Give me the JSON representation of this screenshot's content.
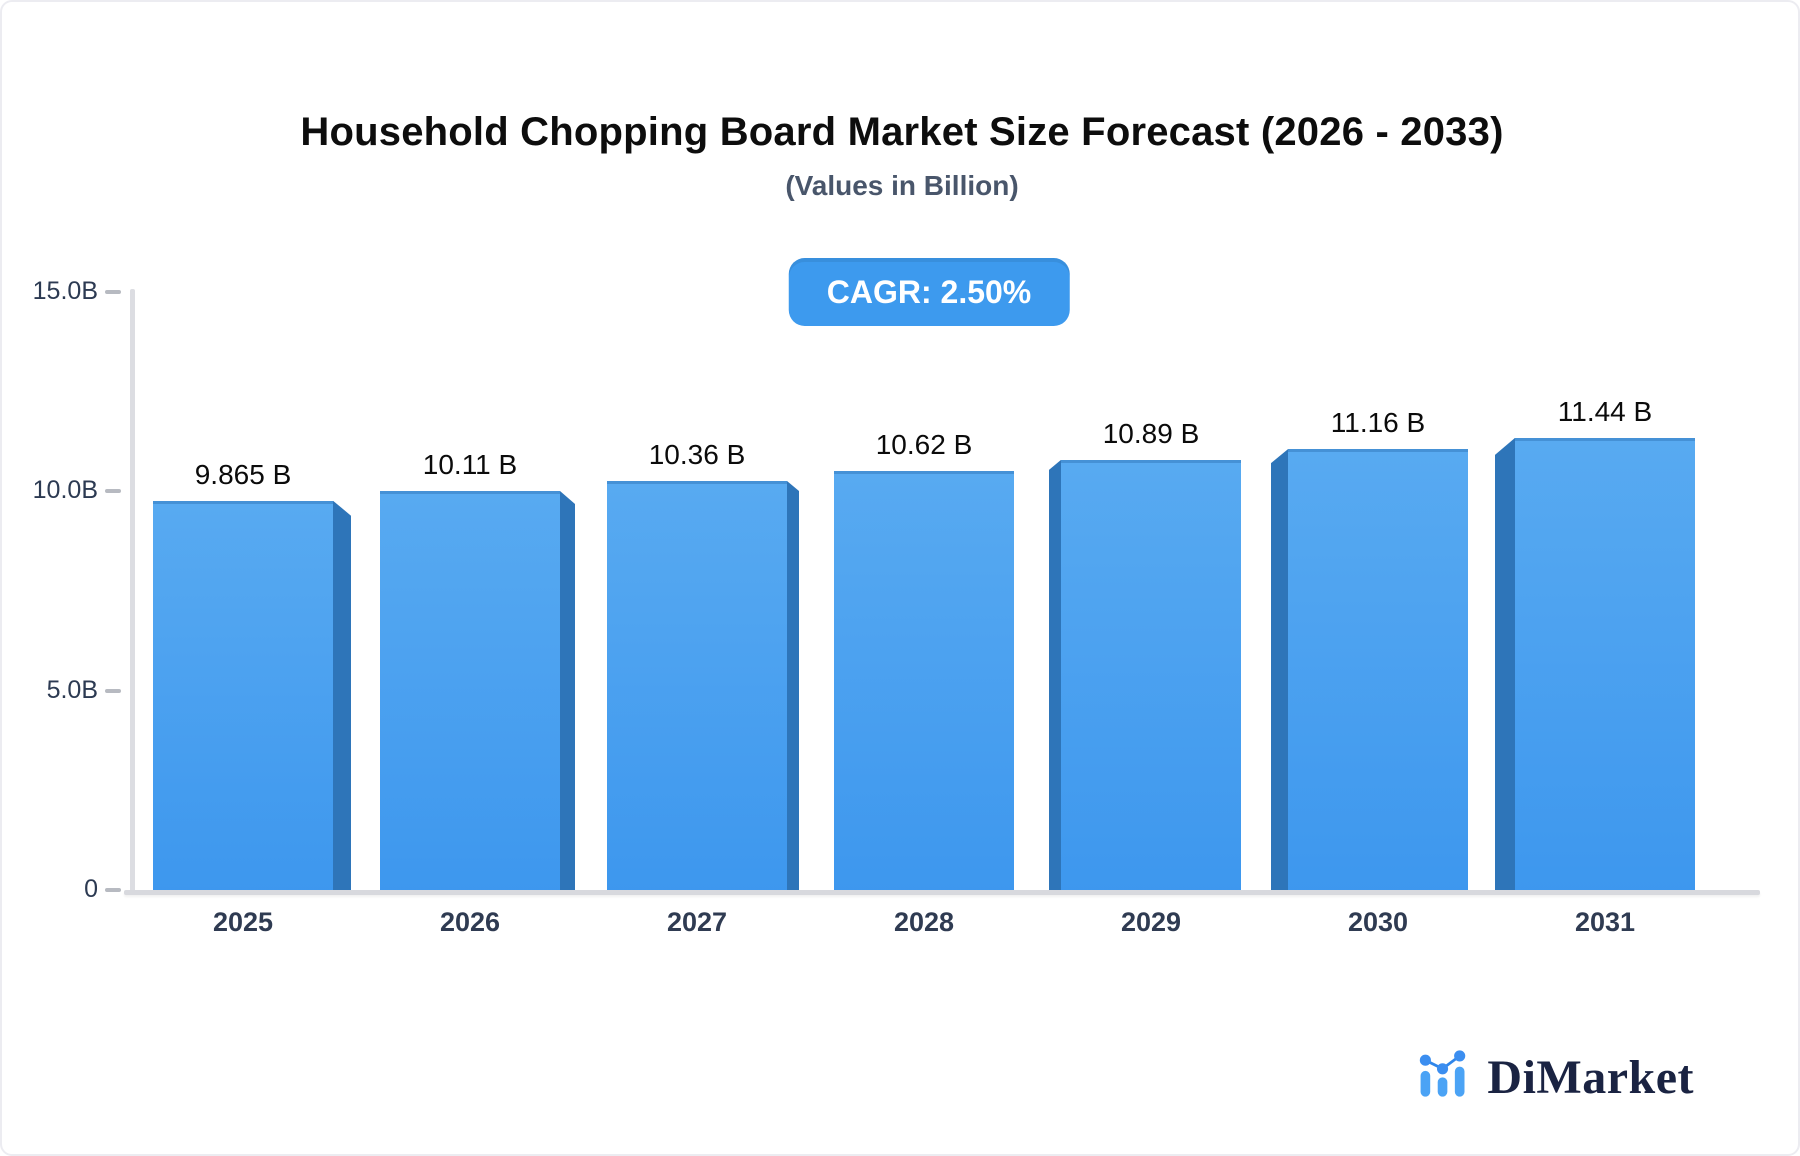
{
  "header": {
    "title": "Household Chopping Board Market Size Forecast (2026 - 2033)",
    "subtitle": "(Values in Billion)"
  },
  "badge": {
    "label": "CAGR: 2.50%"
  },
  "chart_data": {
    "type": "bar",
    "title": "Household Chopping Board Market Size Forecast (2026 - 2033)",
    "subtitle": "(Values in Billion)",
    "categories": [
      "2025",
      "2026",
      "2027",
      "2028",
      "2029",
      "2030",
      "2031"
    ],
    "values": [
      9.865,
      10.11,
      10.36,
      10.62,
      10.89,
      11.16,
      11.44
    ],
    "value_labels": [
      "9.865 B",
      "10.11 B",
      "10.36 B",
      "10.62 B",
      "10.89 B",
      "11.16 B",
      "11.44 B"
    ],
    "unit": "Billion",
    "xlabel": "",
    "ylabel": "",
    "ylim": [
      0,
      15
    ],
    "yticks": [
      {
        "value": 0,
        "label": "0"
      },
      {
        "value": 5,
        "label": "5.0B"
      },
      {
        "value": 10,
        "label": "10.0B"
      },
      {
        "value": 15,
        "label": "15.0B"
      }
    ],
    "grid": false,
    "legend": false,
    "annotations": [
      "CAGR: 2.50%"
    ]
  },
  "logo": {
    "text": "DiMarket",
    "icon": "bar-chart-logo-icon"
  },
  "colors": {
    "bar_top": "#58aaf1",
    "bar_bottom": "#3d97ee",
    "bar_side": "#2e75b9",
    "axis_line": "#dcdde2",
    "baseline": "#d8d9de",
    "tick_dash": "#b7bac1",
    "badge_bg": "#3d9aee",
    "badge_text": "#ffffff",
    "logo_blue": "#4ba3f5",
    "logo_dot_blue": "#3b8ef0",
    "logo_navy": "#1a2342"
  }
}
